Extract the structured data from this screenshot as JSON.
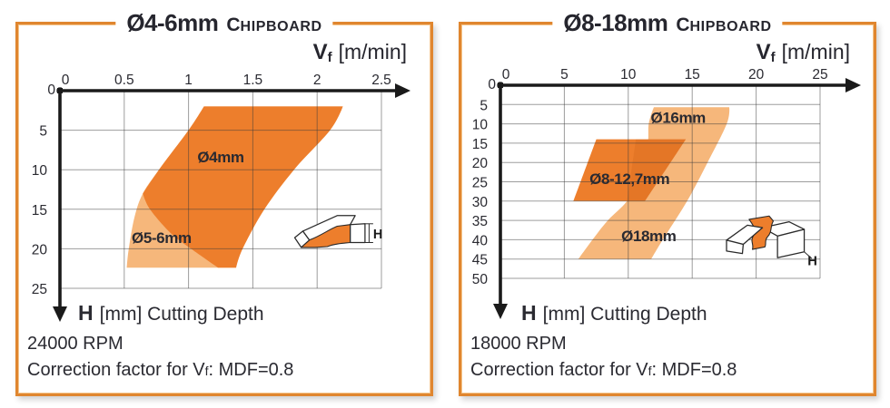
{
  "colors": {
    "border": "#E0862F",
    "band_light": "#F6B77B",
    "band_dark": "#ED7E2C",
    "axis": "#1a1a1a",
    "text": "#2a2a31"
  },
  "panels": [
    {
      "title": {
        "range": "Ø4-6mm",
        "material_initial": "C",
        "material_rest": "HIPBOARD"
      },
      "x_axis": {
        "symbol": "V",
        "symbol_sub": "f",
        "unit": "[m/min]"
      },
      "y_axis_caption": {
        "symbol": "H",
        "rest": "[mm] Cutting Depth"
      },
      "rpm": "24000 RPM",
      "correction": {
        "pre": "Correction factor for V",
        "sub": "f",
        "post": ": MDF=0.8"
      },
      "icon": {
        "h": "H"
      }
    },
    {
      "title": {
        "range": "Ø8-18mm",
        "material_initial": "C",
        "material_rest": "HIPBOARD"
      },
      "x_axis": {
        "symbol": "V",
        "symbol_sub": "f",
        "unit": "[m/min]"
      },
      "y_axis_caption": {
        "symbol": "H",
        "rest": "[mm] Cutting Depth"
      },
      "rpm": "18000 RPM",
      "correction": {
        "pre": "Correction factor for V",
        "sub": "f",
        "post": ": MDF=0.8"
      },
      "icon": {
        "h": "H"
      }
    }
  ],
  "chart_data": [
    {
      "type": "area",
      "title": "Ø4-6mm Chipboard",
      "xlabel": "Vf [m/min]",
      "ylabel": "H [mm] Cutting Depth",
      "xlim": [
        0,
        2.5
      ],
      "ylim": [
        0,
        25
      ],
      "y_direction": "down",
      "grid": true,
      "x_ticks": [
        0,
        0.5,
        1,
        1.5,
        2,
        2.5
      ],
      "y_ticks": [
        0,
        5,
        10,
        15,
        20,
        25
      ],
      "rpm": 24000,
      "note": "Correction factor for Vf: MDF=0.8",
      "regions": [
        {
          "name": "Ø5-6mm",
          "tone": "light",
          "labels": [
            {
              "text": "Ø5-6mm",
              "at": [
                0.79,
                18.6
              ]
            }
          ],
          "points": [
            [
              1.12,
              2,
              1
            ],
            [
              2.2,
              2,
              1
            ],
            [
              2.1,
              5,
              0
            ],
            [
              1.82,
              10,
              0
            ],
            [
              1.59,
              15,
              0
            ],
            [
              1.42,
              20,
              0
            ],
            [
              1.37,
              22.4,
              1
            ],
            [
              0.52,
              22.4,
              1
            ],
            [
              0.535,
              20,
              0
            ],
            [
              0.58,
              16,
              0
            ],
            [
              0.645,
              13,
              0
            ],
            [
              0.77,
              10,
              0
            ],
            [
              1.0,
              5,
              0
            ]
          ]
        },
        {
          "name": "Ø4mm",
          "tone": "dark",
          "labels": [
            {
              "text": "Ø4mm",
              "at": [
                1.25,
                8.4
              ]
            }
          ],
          "points": [
            [
              1.12,
              2,
              1
            ],
            [
              2.2,
              2,
              1
            ],
            [
              2.1,
              5,
              0
            ],
            [
              1.82,
              10,
              0
            ],
            [
              1.59,
              15,
              0
            ],
            [
              1.42,
              20,
              0
            ],
            [
              1.37,
              22.4,
              1
            ],
            [
              1.23,
              22.4,
              1
            ],
            [
              1.02,
              20,
              0
            ],
            [
              0.86,
              18,
              0
            ],
            [
              0.7,
              15,
              0
            ],
            [
              0.645,
              13,
              1
            ],
            [
              0.77,
              10,
              0
            ],
            [
              1.0,
              5,
              0
            ]
          ]
        }
      ]
    },
    {
      "type": "area",
      "title": "Ø8-18mm Chipboard",
      "xlabel": "Vf [m/min]",
      "ylabel": "H [mm] Cutting Depth",
      "xlim": [
        0,
        25
      ],
      "ylim": [
        0,
        50
      ],
      "y_direction": "down",
      "grid": true,
      "x_ticks": [
        0,
        5,
        10,
        15,
        20,
        25
      ],
      "y_ticks": [
        0,
        5,
        10,
        15,
        20,
        25,
        30,
        35,
        40,
        45,
        50
      ],
      "rpm": 18000,
      "note": "Correction factor for Vf: MDF=0.8",
      "regions": [
        {
          "name": "Ø16-18mm",
          "tone": "light",
          "labels": [
            {
              "text": "Ø16mm",
              "at": [
                13.9,
                8.3
              ]
            },
            {
              "text": "Ø18mm",
              "at": [
                11.6,
                39
              ]
            }
          ],
          "points": [
            [
              12,
              5.7,
              1
            ],
            [
              17.9,
              5.7,
              1
            ],
            [
              17.7,
              10,
              0
            ],
            [
              16.2,
              20,
              0
            ],
            [
              14.6,
              30,
              0
            ],
            [
              12.7,
              40,
              0
            ],
            [
              11.8,
              45,
              1
            ],
            [
              6.1,
              45,
              1
            ],
            [
              7.2,
              40,
              0
            ],
            [
              8.4,
              35,
              0
            ],
            [
              9.9,
              30,
              0
            ],
            [
              10.8,
              24,
              0
            ],
            [
              11.5,
              16,
              0
            ],
            [
              11.6,
              10,
              0
            ]
          ]
        },
        {
          "name": "Ø8-12,7mm",
          "tone": "dark",
          "labels": [
            {
              "text": "Ø8-12,7mm",
              "at": [
                10.1,
                24.2
              ]
            }
          ],
          "points": [
            [
              7.5,
              14,
              1
            ],
            [
              14.5,
              14,
              1
            ],
            [
              11.3,
              30,
              1
            ],
            [
              5.7,
              30,
              1
            ]
          ]
        },
        {
          "name": "overlap-band",
          "tone": "overlap",
          "labels": [],
          "points": [
            [
              10.6,
              14,
              1
            ],
            [
              14.5,
              14,
              1
            ],
            [
              11.3,
              30,
              1
            ],
            [
              9.9,
              30,
              1
            ]
          ]
        }
      ]
    }
  ]
}
